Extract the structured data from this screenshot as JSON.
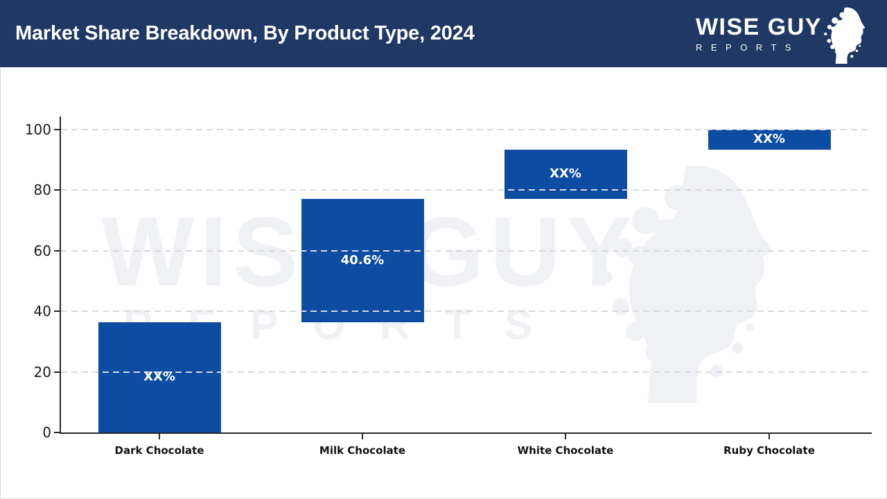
{
  "header": {
    "title": "Market Share Breakdown, By Product Type, 2024",
    "logo": {
      "line1": "WISE GUY",
      "line2": "REPORTS"
    }
  },
  "watermark": {
    "line1": "WISE GUY",
    "line2": "REPORTS"
  },
  "colors": {
    "header_bg": "#1f3864",
    "bar": "#0d4da1",
    "bar_label": "#ffffff",
    "axis": "#262626",
    "grid": "#d9d9d9",
    "tick_label": "#1a1a1a",
    "watermark": "#f0f1f4"
  },
  "chart_data": {
    "type": "bar",
    "subtype": "waterfall-stacked-percentage",
    "title": "Market Share Breakdown, By Product Type, 2024",
    "categories": [
      "Dark Chocolate",
      "Milk Chocolate",
      "White Chocolate",
      "Ruby Chocolate"
    ],
    "segments": [
      {
        "category": "Dark Chocolate",
        "start": 0,
        "end": 36.4,
        "value_pct": 36.4,
        "label": "XX%"
      },
      {
        "category": "Milk Chocolate",
        "start": 36.4,
        "end": 77,
        "value_pct": 40.6,
        "label": "40.6%"
      },
      {
        "category": "White Chocolate",
        "start": 77,
        "end": 93.3,
        "value_pct": 16.3,
        "label": "XX%"
      },
      {
        "category": "Ruby Chocolate",
        "start": 93.3,
        "end": 100,
        "value_pct": 6.7,
        "label": "XX%"
      }
    ],
    "xlabel": "",
    "ylabel": "",
    "ylim": [
      0,
      100
    ],
    "yticks": [
      0,
      20,
      40,
      60,
      80,
      100
    ],
    "grid": "horizontal-dashed, drawn over bars",
    "legend": null
  }
}
